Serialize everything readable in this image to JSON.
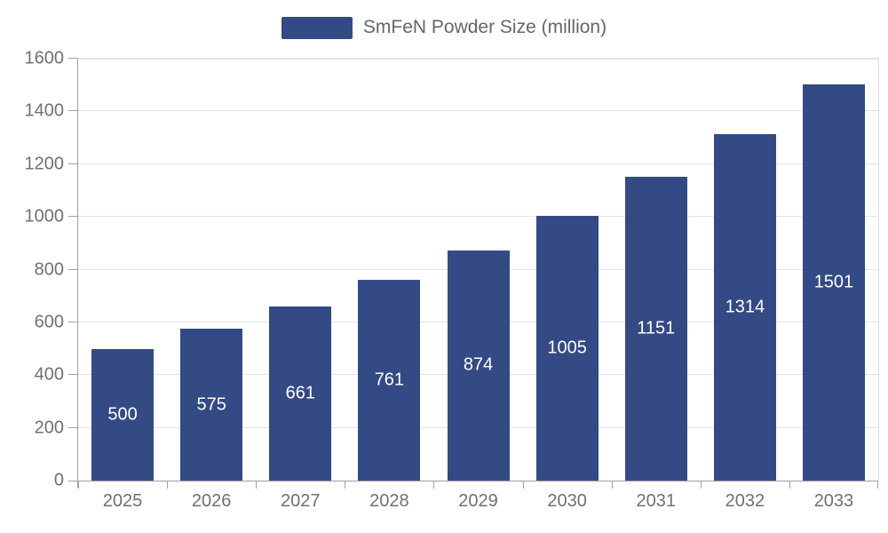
{
  "chart_data": {
    "type": "bar",
    "title": "",
    "series_name": "SmFeN Powder Size (million)",
    "categories": [
      "2025",
      "2026",
      "2027",
      "2028",
      "2029",
      "2030",
      "2031",
      "2032",
      "2033"
    ],
    "values": [
      500,
      575,
      661,
      761,
      874,
      1005,
      1151,
      1314,
      1501
    ],
    "xlabel": "",
    "ylabel": "",
    "ylim": [
      0,
      1600
    ],
    "ytick_step": 200,
    "grid": true,
    "legend_position": "top-center",
    "bar_labels_inside": true
  },
  "colors": {
    "bar": "#344a85",
    "bar_value_text": "#ffffff",
    "axis_text": "#707070",
    "legend_text": "#666666",
    "gridline": "#e3e3e3",
    "axis_line": "#a0a0a0",
    "background": "#ffffff"
  }
}
